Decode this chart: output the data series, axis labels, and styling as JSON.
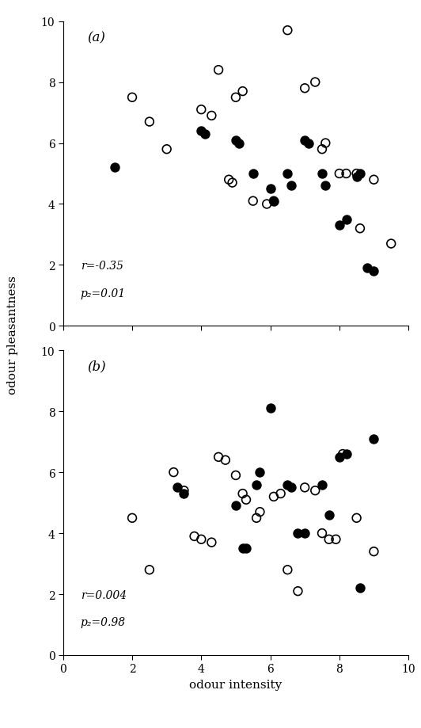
{
  "panel_a": {
    "label": "(a)",
    "ann_line1": "r=-0.35",
    "ann_line2": "p₂=0.01",
    "open_circles": [
      [
        2.0,
        7.5
      ],
      [
        2.5,
        6.7
      ],
      [
        3.0,
        5.8
      ],
      [
        4.0,
        7.1
      ],
      [
        4.3,
        6.9
      ],
      [
        4.5,
        8.4
      ],
      [
        4.8,
        4.8
      ],
      [
        4.9,
        4.7
      ],
      [
        5.0,
        7.5
      ],
      [
        5.2,
        7.7
      ],
      [
        5.5,
        4.1
      ],
      [
        5.9,
        4.0
      ],
      [
        6.1,
        4.1
      ],
      [
        6.5,
        9.7
      ],
      [
        7.0,
        7.8
      ],
      [
        7.3,
        8.0
      ],
      [
        7.5,
        5.8
      ],
      [
        7.6,
        6.0
      ],
      [
        8.0,
        5.0
      ],
      [
        8.2,
        5.0
      ],
      [
        8.5,
        5.0
      ],
      [
        8.6,
        3.2
      ],
      [
        9.0,
        4.8
      ],
      [
        9.5,
        2.7
      ]
    ],
    "filled_circles": [
      [
        1.5,
        5.2
      ],
      [
        4.0,
        6.4
      ],
      [
        4.1,
        6.3
      ],
      [
        5.0,
        6.1
      ],
      [
        5.1,
        6.0
      ],
      [
        5.5,
        5.0
      ],
      [
        6.0,
        4.5
      ],
      [
        6.1,
        4.1
      ],
      [
        6.5,
        5.0
      ],
      [
        6.6,
        4.6
      ],
      [
        7.0,
        6.1
      ],
      [
        7.1,
        6.0
      ],
      [
        7.5,
        5.0
      ],
      [
        7.6,
        4.6
      ],
      [
        8.0,
        3.3
      ],
      [
        8.2,
        3.5
      ],
      [
        8.5,
        4.9
      ],
      [
        8.6,
        5.0
      ],
      [
        8.8,
        1.9
      ],
      [
        9.0,
        1.8
      ]
    ]
  },
  "panel_b": {
    "label": "(b)",
    "ann_line1": "r=0.004",
    "ann_line2": "p₂=0.98",
    "open_circles": [
      [
        2.0,
        4.5
      ],
      [
        2.5,
        2.8
      ],
      [
        3.2,
        6.0
      ],
      [
        3.5,
        5.4
      ],
      [
        3.8,
        3.9
      ],
      [
        4.0,
        3.8
      ],
      [
        4.3,
        3.7
      ],
      [
        4.5,
        6.5
      ],
      [
        4.7,
        6.4
      ],
      [
        5.0,
        5.9
      ],
      [
        5.2,
        5.3
      ],
      [
        5.3,
        5.1
      ],
      [
        5.6,
        4.5
      ],
      [
        5.7,
        4.7
      ],
      [
        6.1,
        5.2
      ],
      [
        6.3,
        5.3
      ],
      [
        6.5,
        2.8
      ],
      [
        6.8,
        2.1
      ],
      [
        7.0,
        5.5
      ],
      [
        7.3,
        5.4
      ],
      [
        7.5,
        4.0
      ],
      [
        7.7,
        3.8
      ],
      [
        7.9,
        3.8
      ],
      [
        8.1,
        6.6
      ],
      [
        8.5,
        4.5
      ],
      [
        9.0,
        3.4
      ]
    ],
    "filled_circles": [
      [
        3.3,
        5.5
      ],
      [
        3.5,
        5.3
      ],
      [
        5.0,
        4.9
      ],
      [
        5.2,
        3.5
      ],
      [
        5.3,
        3.5
      ],
      [
        5.6,
        5.6
      ],
      [
        5.7,
        6.0
      ],
      [
        6.0,
        8.1
      ],
      [
        6.5,
        5.6
      ],
      [
        6.6,
        5.5
      ],
      [
        6.8,
        4.0
      ],
      [
        7.0,
        4.0
      ],
      [
        7.5,
        5.6
      ],
      [
        7.7,
        4.6
      ],
      [
        8.0,
        6.5
      ],
      [
        8.2,
        6.6
      ],
      [
        8.6,
        2.2
      ],
      [
        9.0,
        7.1
      ]
    ]
  },
  "xlim": [
    0,
    10
  ],
  "ylim": [
    0,
    10
  ],
  "xticks": [
    0,
    2,
    4,
    6,
    8,
    10
  ],
  "yticks": [
    0,
    2,
    4,
    6,
    8,
    10
  ],
  "xlabel": "odour intensity",
  "ylabel": "odour pleasantness",
  "marker_size": 60,
  "marker_lw": 1.2,
  "bg_color": "#ffffff"
}
